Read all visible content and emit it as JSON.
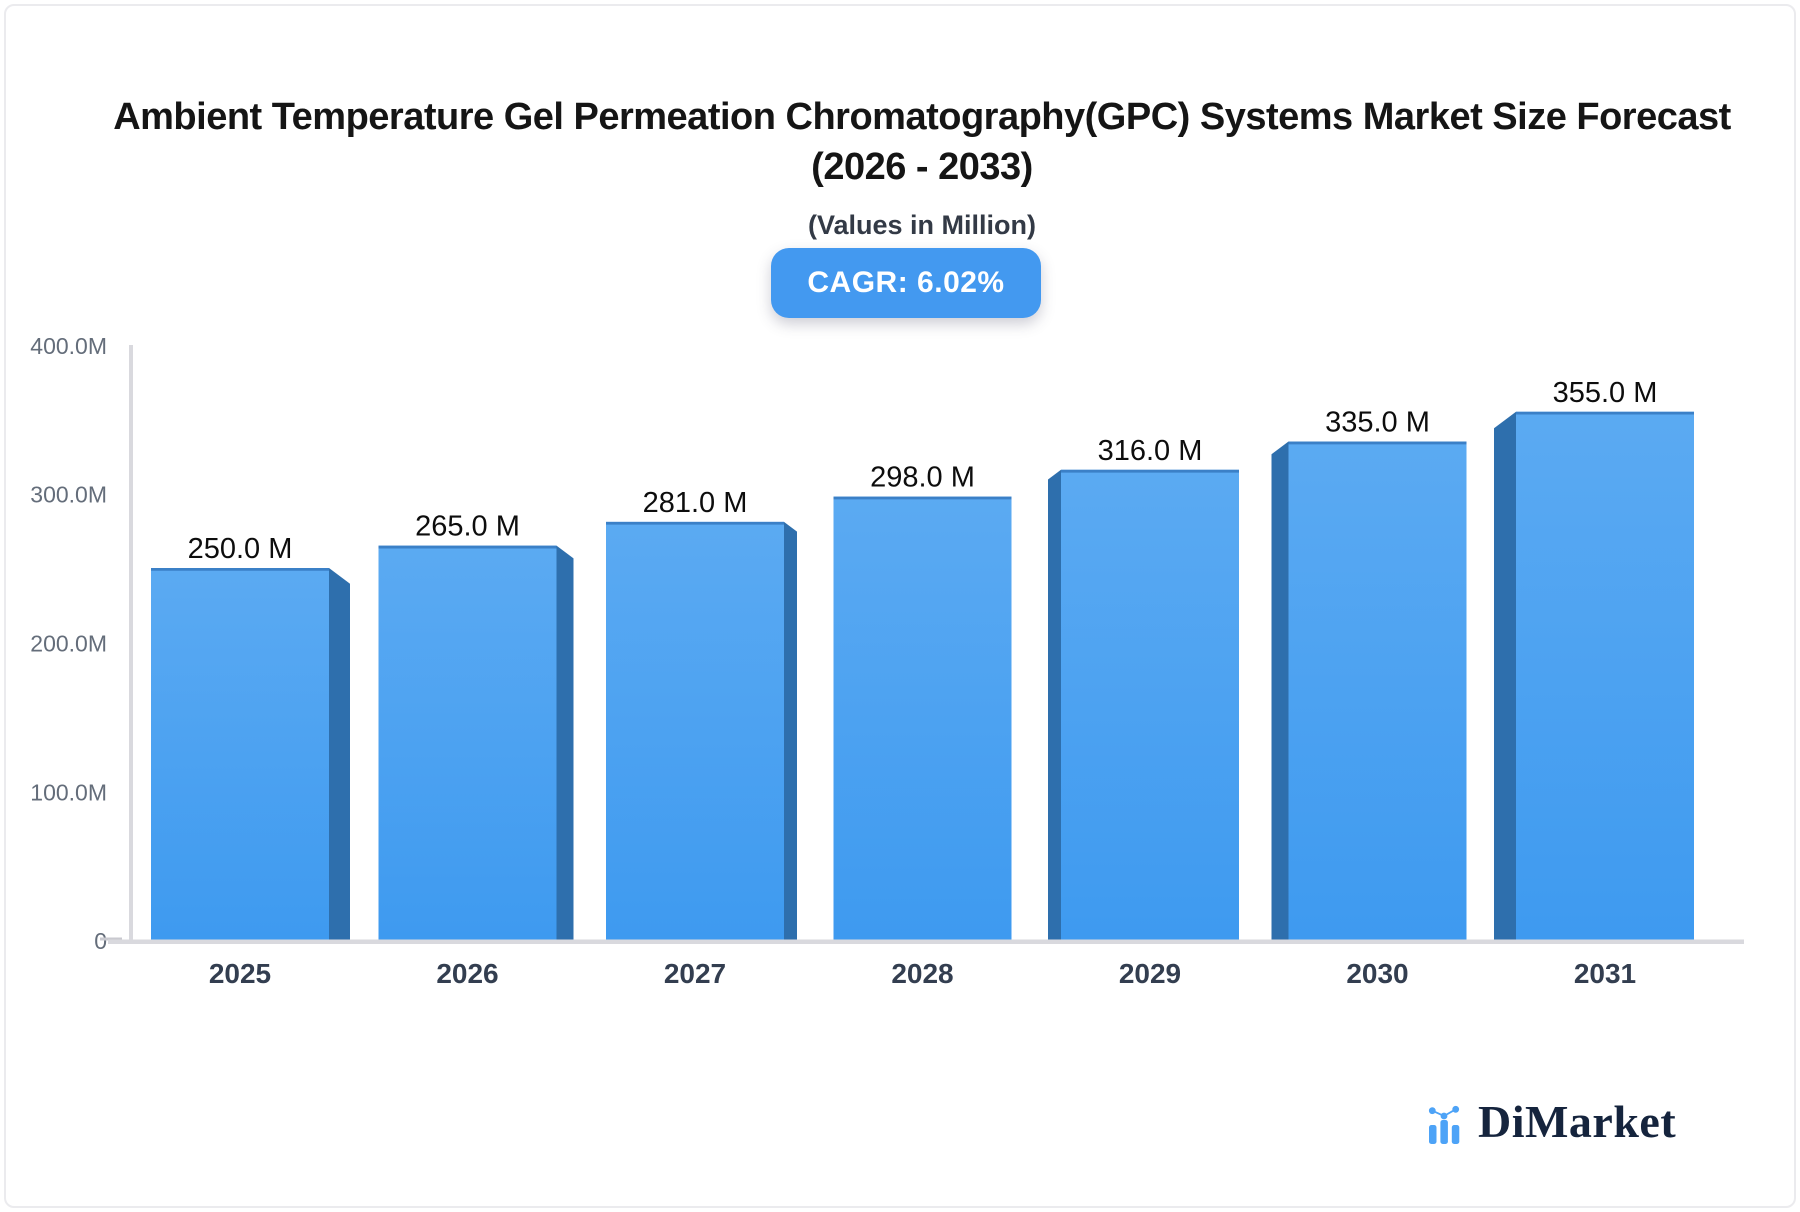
{
  "header": {
    "title": "Ambient Temperature Gel Permeation Chromatography(GPC) Systems Market Size Forecast (2026 - 2033)",
    "subtitle": "(Values in Million)",
    "cagr_label": "CAGR: 6.02%"
  },
  "branding": {
    "logo_text": "DiMarket"
  },
  "colors": {
    "badge_bg": "#4399f0",
    "bar_front_top": "#5baaf2",
    "bar_front_bottom": "#3e9af0",
    "bar_side": "#2e6fad",
    "bar_top_edge": "#3b80c7",
    "axis_line": "#d9d9de",
    "zero_dash": "#c9c9cf",
    "y_tick_text": "#646d7a",
    "x_tick_text": "#333e50",
    "value_label_text": "#0d0d0d",
    "logo_blue": "#4da3f7",
    "logo_navy": "#15243d"
  },
  "chart_data": {
    "type": "bar",
    "title": "Ambient Temperature Gel Permeation Chromatography(GPC) Systems Market Size Forecast (2026 - 2033)",
    "subtitle": "(Values in Million)",
    "cagr": "6.02%",
    "unit": "Million",
    "categories": [
      "2025",
      "2026",
      "2027",
      "2028",
      "2029",
      "2030",
      "2031"
    ],
    "values": [
      250,
      265,
      281,
      298,
      316,
      335,
      355
    ],
    "value_labels": [
      "250.0 M",
      "265.0 M",
      "281.0 M",
      "298.0 M",
      "316.0 M",
      "335.0 M",
      "355.0 M"
    ],
    "y_ticks": [
      {
        "label": "400.0M",
        "value": 400
      },
      {
        "label": "300.0M",
        "value": 300
      },
      {
        "label": "200.0M",
        "value": 200
      },
      {
        "label": "100.0M",
        "value": 100
      },
      {
        "label": "0",
        "value": 0
      }
    ],
    "ylim": [
      0,
      400
    ],
    "grid": false,
    "legend": false,
    "bar_style": "3d-perspective"
  }
}
